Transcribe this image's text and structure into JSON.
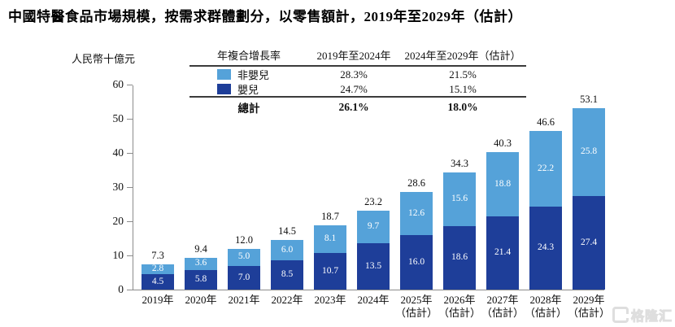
{
  "title": "中國特醫食品市場規模，按需求群體劃分，以零售額計，2019年至2029年（估計）",
  "unit_label": "人民幣十億元",
  "cagr_table": {
    "header": {
      "c1": "年複合增長率",
      "c2": "2019年至2024年",
      "c3": "2024年至2029年（估計）"
    },
    "rows": [
      {
        "label": "非嬰兒",
        "swatch": "#55A2D9",
        "col1": "28.3%",
        "col2": "21.5%"
      },
      {
        "label": "嬰兒",
        "swatch": "#1E3E99",
        "col1": "24.7%",
        "col2": "15.1%"
      }
    ],
    "total": {
      "label": "總計",
      "col1": "26.1%",
      "col2": "18.0%"
    }
  },
  "chart_data": {
    "type": "bar",
    "subtype": "stacked",
    "title": "中國特醫食品市場規模，按需求群體劃分，以零售額計，2019年至2029年（估計）",
    "ylabel": "人民幣十億元",
    "ylim": [
      0,
      60
    ],
    "yticks": [
      0,
      10,
      20,
      30,
      40,
      50,
      60
    ],
    "grid": false,
    "legend_position": "top-table",
    "categories": [
      {
        "label": "2019年",
        "sub": ""
      },
      {
        "label": "2020年",
        "sub": ""
      },
      {
        "label": "2021年",
        "sub": ""
      },
      {
        "label": "2022年",
        "sub": ""
      },
      {
        "label": "2023年",
        "sub": ""
      },
      {
        "label": "2024年",
        "sub": ""
      },
      {
        "label": "2025年",
        "sub": "（估計）"
      },
      {
        "label": "2026年",
        "sub": "（估計）"
      },
      {
        "label": "2027年",
        "sub": "（估計）"
      },
      {
        "label": "2028年",
        "sub": "（估計）"
      },
      {
        "label": "2029年",
        "sub": "（估計）"
      }
    ],
    "stack_order": "bottom-to-top",
    "series": [
      {
        "name": "嬰兒",
        "color": "#1E3E99",
        "values": [
          4.5,
          5.8,
          7.0,
          8.5,
          10.7,
          13.5,
          16.0,
          18.6,
          21.4,
          24.3,
          27.4
        ]
      },
      {
        "name": "非嬰兒",
        "color": "#55A2D9",
        "values": [
          2.8,
          3.6,
          5.0,
          6.0,
          8.1,
          9.7,
          12.6,
          15.6,
          18.8,
          22.2,
          25.8
        ]
      }
    ],
    "totals": [
      7.3,
      9.4,
      12.0,
      14.5,
      18.7,
      23.2,
      28.6,
      34.3,
      40.3,
      46.6,
      53.1
    ]
  },
  "colors": {
    "non_infant": "#55A2D9",
    "infant": "#1E3E99",
    "axis": "#8c8c8c"
  },
  "watermark": {
    "logo_text": "格隆汇"
  }
}
